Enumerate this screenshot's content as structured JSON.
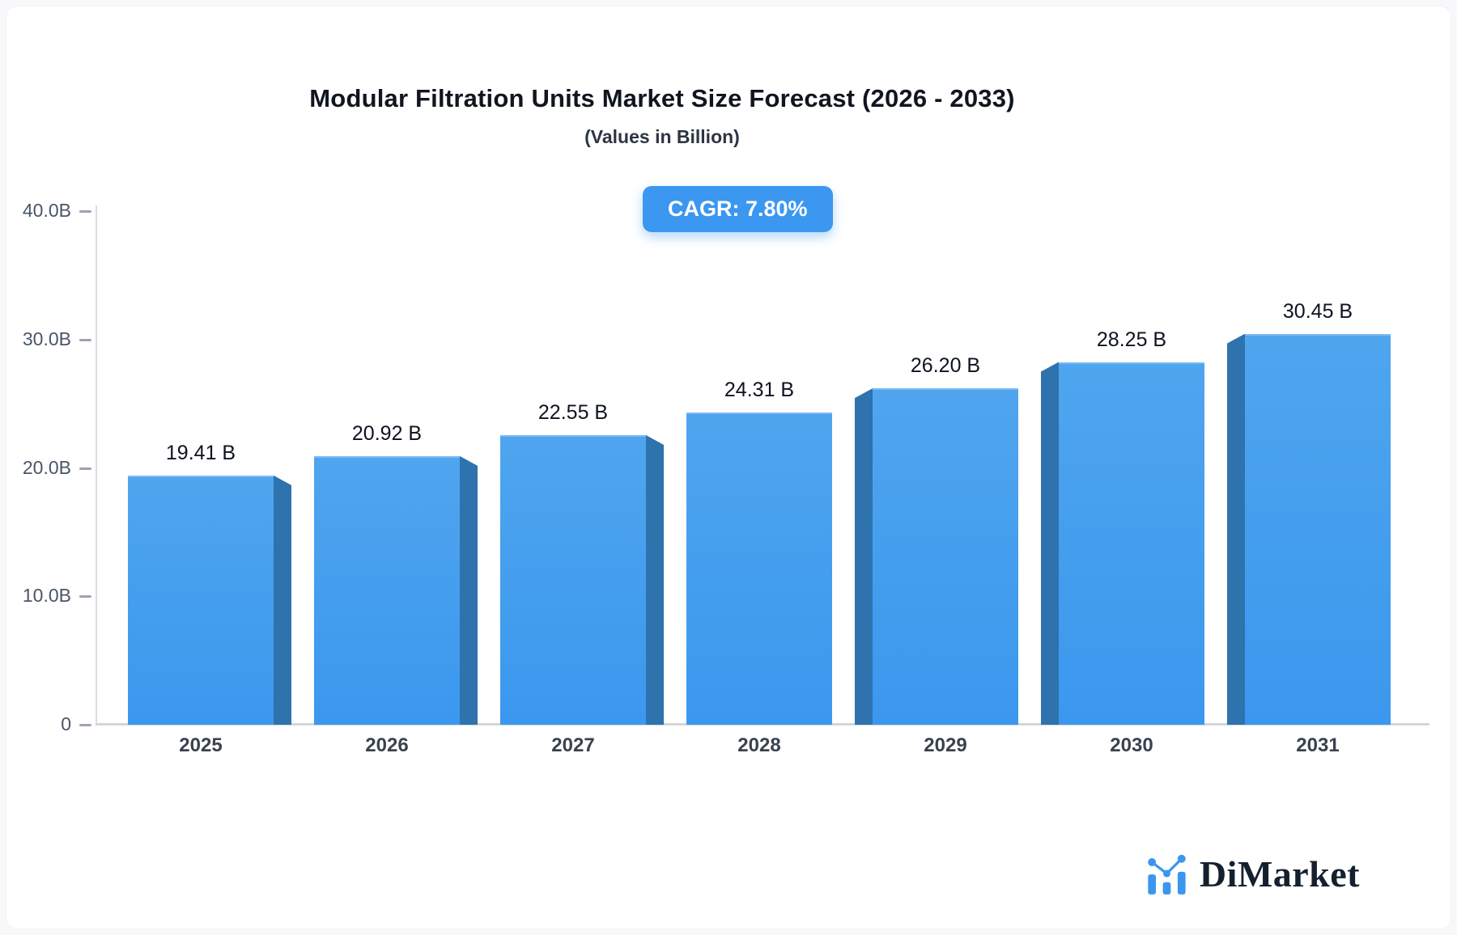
{
  "header": {
    "title": "Modular Filtration Units Market Size Forecast (2026 - 2033)",
    "subtitle": "(Values in Billion)",
    "cagr_label": "CAGR: 7.80%"
  },
  "chart_data": {
    "type": "bar",
    "title": "Modular Filtration Units Market Size Forecast (2026 - 2033)",
    "subtitle": "(Values in Billion)",
    "categories": [
      "2025",
      "2026",
      "2027",
      "2028",
      "2029",
      "2030",
      "2031"
    ],
    "values": [
      19.41,
      20.92,
      22.55,
      24.31,
      26.2,
      28.25,
      30.45
    ],
    "bar_labels": [
      "19.41 B",
      "20.92 B",
      "22.55 B",
      "24.31 B",
      "26.20 B",
      "28.25 B",
      "30.45 B"
    ],
    "cagr_percent": "7.80%",
    "xlabel": "",
    "ylabel": "",
    "ylim": [
      0,
      40
    ],
    "yticks": [
      {
        "value": 40,
        "label": "40.0B"
      },
      {
        "value": 30,
        "label": "30.0B"
      },
      {
        "value": 20,
        "label": "20.0B"
      },
      {
        "value": 10,
        "label": "10.0B"
      },
      {
        "value": 0,
        "label": "0"
      }
    ],
    "grid": false,
    "legend": false,
    "style": "3d-perspective-bars",
    "colors": {
      "bar_front_top": "#4fa5ee",
      "bar_front_bottom": "#3b98ee",
      "bar_side": "#2e72ae",
      "badge_background": "#3b97f0",
      "badge_text": "#ffffff",
      "axis_line": "#d2d6db",
      "logo_icon": "#3b96f0",
      "logo_text": "#15202f"
    }
  },
  "logo": {
    "text": "DiMarket",
    "icon": "bar-line-chart-icon"
  }
}
